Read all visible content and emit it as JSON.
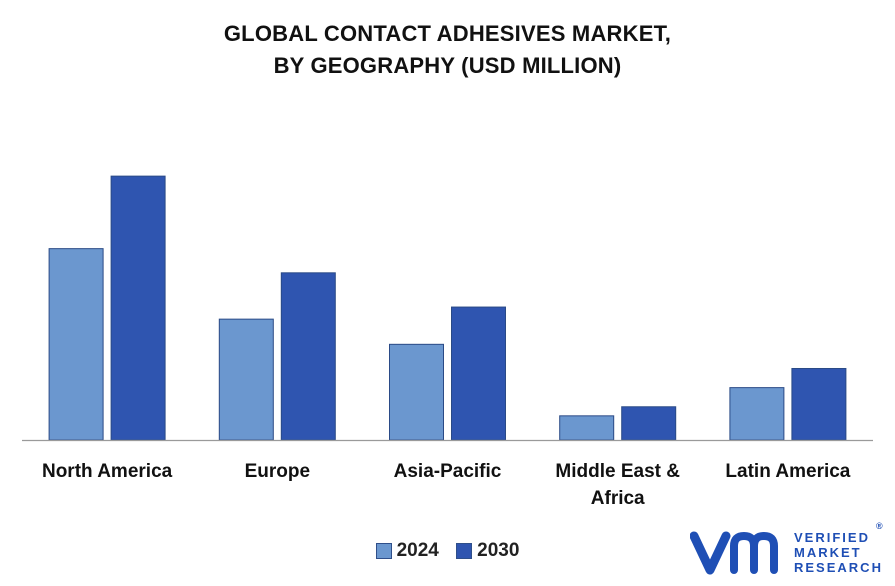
{
  "title_lines": [
    "GLOBAL CONTACT ADHESIVES MARKET,",
    "BY GEOGRAPHY (USD MILLION)"
  ],
  "legend": {
    "items": [
      {
        "label": "2024",
        "color": "#6b97cf"
      },
      {
        "label": "2030",
        "color": "#2f55b0"
      }
    ]
  },
  "brand": {
    "lines": [
      "VERIFIED",
      "MARKET",
      "RESEARCH"
    ],
    "reg_mark": "®",
    "color": "#1f4fb5"
  },
  "chart_data": {
    "type": "bar",
    "categories": [
      "North America",
      "Europe",
      "Asia-Pacific",
      "Middle East & Africa",
      "Latin America"
    ],
    "category_label_lines": [
      [
        "North America"
      ],
      [
        "Europe"
      ],
      [
        "Asia-Pacific"
      ],
      [
        "Middle East &",
        "Africa"
      ],
      [
        "Latin America"
      ]
    ],
    "series": [
      {
        "name": "2024",
        "values": [
          190,
          120,
          95,
          24,
          52
        ],
        "color": "#6b97cf"
      },
      {
        "name": "2030",
        "values": [
          262,
          166,
          132,
          33,
          71
        ],
        "color": "#2f55b0"
      }
    ],
    "title": "GLOBAL CONTACT ADHESIVES MARKET, BY GEOGRAPHY (USD MILLION)",
    "xlabel": "",
    "ylabel": "",
    "ylim": [
      0,
      280
    ],
    "grid": false,
    "legend_position": "bottom-center"
  }
}
